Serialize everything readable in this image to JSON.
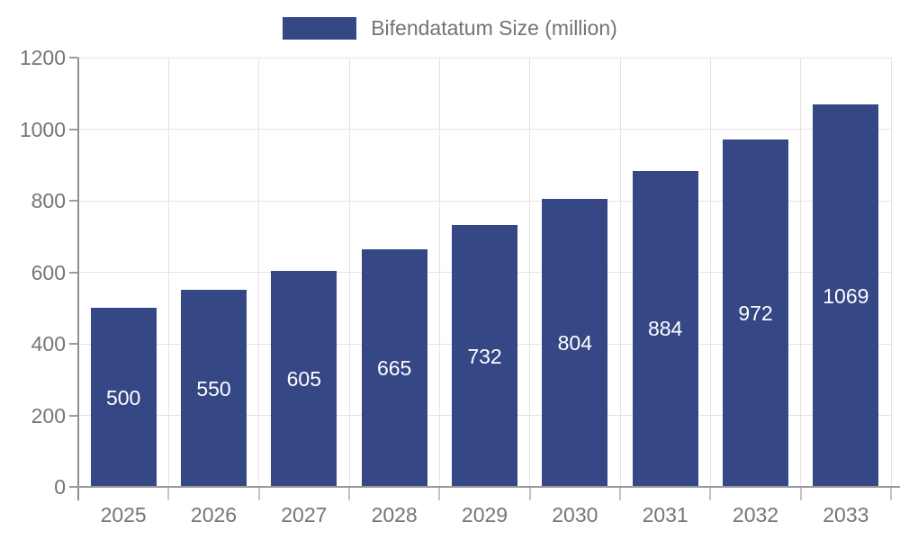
{
  "legend": {
    "label": "Bifendatatum Size (million)",
    "swatch_color": "#364785"
  },
  "chart_data": {
    "type": "bar",
    "title": "",
    "xlabel": "",
    "ylabel": "",
    "series_name": "Bifendatatum Size (million)",
    "categories": [
      "2025",
      "2026",
      "2027",
      "2028",
      "2029",
      "2030",
      "2031",
      "2032",
      "2033"
    ],
    "values": [
      500,
      550,
      605,
      665,
      732,
      804,
      884,
      972,
      1069
    ],
    "value_labels": [
      "500",
      "550",
      "605",
      "665",
      "732",
      "804",
      "884",
      "972",
      "1069"
    ],
    "ylim": [
      0,
      1200
    ],
    "yticks": [
      0,
      200,
      400,
      600,
      800,
      1000,
      1200
    ],
    "ytick_labels": [
      "0",
      "200",
      "400",
      "600",
      "800",
      "1000",
      "1200"
    ],
    "grid": true,
    "legend_position": "top",
    "bar_color": "#364785",
    "value_label_color": "#ffffff",
    "tick_label_color": "#757575",
    "grid_color": "#e4e4e4",
    "axis_color": "#9b9b9b"
  }
}
